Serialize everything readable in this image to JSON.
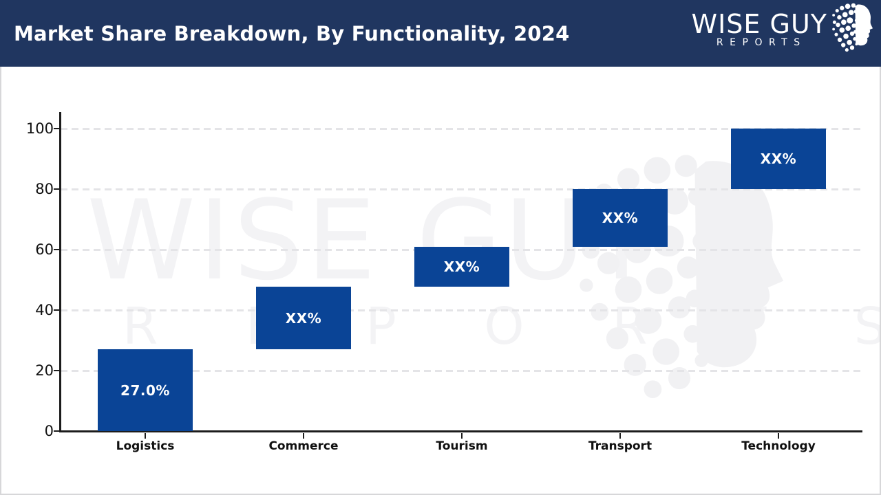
{
  "header": {
    "title": "Market Share Breakdown, By Functionality, 2024",
    "logo": {
      "line1": "WISE GUY",
      "line2": "REPORTS"
    }
  },
  "watermark": {
    "line1": "WISE GUY",
    "line2": "R E P O R T S"
  },
  "chart_data": {
    "type": "bar",
    "subtype": "waterfall",
    "title": "Market Share Breakdown, By Functionality, 2024",
    "categories": [
      "Logistics",
      "Commerce",
      "Tourism",
      "Transport",
      "Technology"
    ],
    "segments": [
      {
        "category": "Logistics",
        "start": 0,
        "end": 27,
        "label": "27.0%"
      },
      {
        "category": "Commerce",
        "start": 27,
        "end": 47.7,
        "label": "XX%"
      },
      {
        "category": "Tourism",
        "start": 47.7,
        "end": 60.9,
        "label": "XX%"
      },
      {
        "category": "Transport",
        "start": 60.9,
        "end": 80,
        "label": "XX%"
      },
      {
        "category": "Technology",
        "start": 80,
        "end": 100,
        "label": "XX%"
      }
    ],
    "xlabel": "",
    "ylabel": "",
    "ylim": [
      0,
      104
    ],
    "yticks": [
      0,
      20,
      40,
      60,
      80,
      100
    ],
    "grid": "horizontal-dashed",
    "legend": "none",
    "colors": {
      "bar": "#0a4496",
      "header_bg": "#203660",
      "grid": "#e4e4e7",
      "axis": "#1c1c1c",
      "bar_label": "#ffffff",
      "watermark": "#f3f3f5",
      "frame_border": "#d7d7d9"
    }
  }
}
